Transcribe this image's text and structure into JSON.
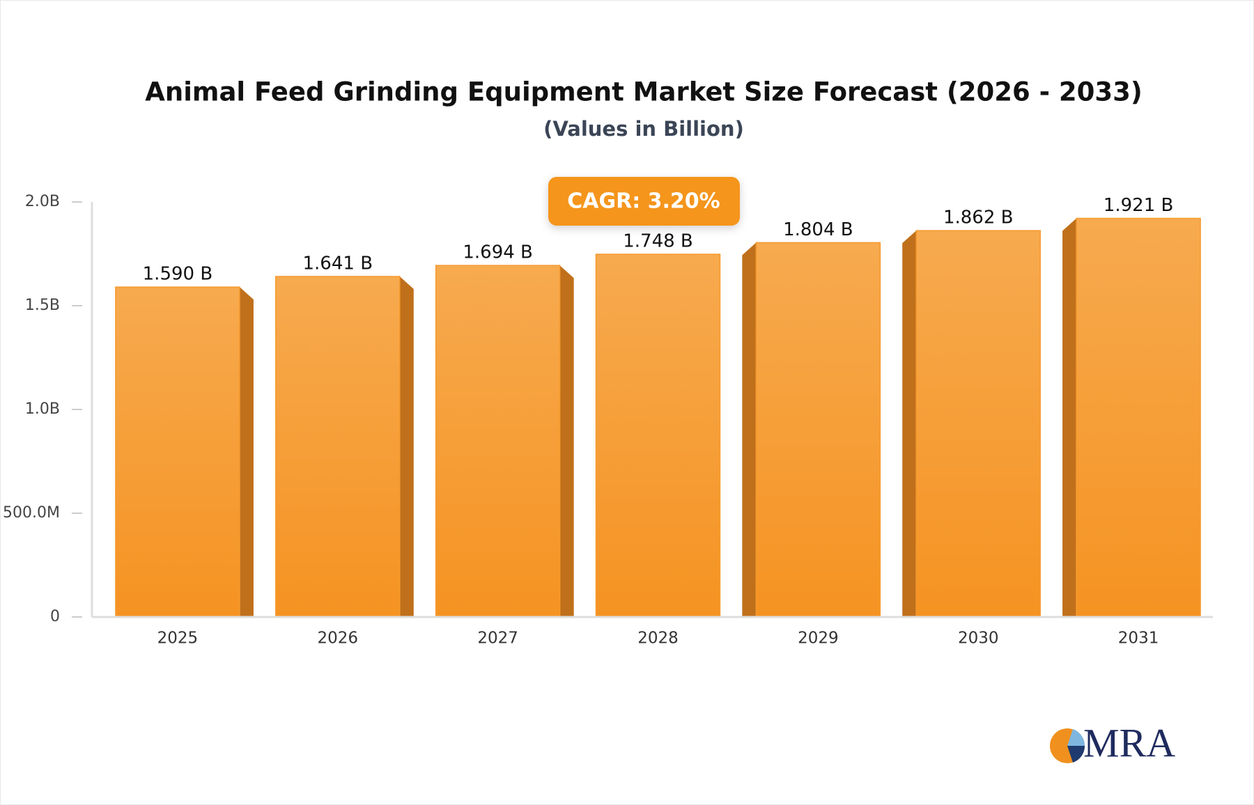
{
  "chart_data": {
    "type": "bar",
    "title": "Animal Feed Grinding Equipment Market Size Forecast (2026 - 2033)",
    "subtitle": "(Values in Billion)",
    "annotation": "CAGR: 3.20%",
    "logo": "MRA",
    "categories": [
      "2025",
      "2026",
      "2027",
      "2028",
      "2029",
      "2030",
      "2031"
    ],
    "values": [
      1.59,
      1.641,
      1.694,
      1.748,
      1.804,
      1.862,
      1.921
    ],
    "value_labels": [
      "1.590 B",
      "1.641 B",
      "1.694 B",
      "1.748 B",
      "1.804 B",
      "1.862 B",
      "1.921 B"
    ],
    "color": "#f59a2e",
    "ylim": [
      0,
      2
    ],
    "yticks": [
      0,
      {
        "value": 0.5,
        "label": "500.0M"
      },
      {
        "value": 1,
        "label": "1.0B"
      },
      {
        "value": 1.5,
        "label": "1.5B"
      },
      {
        "value": 2,
        "label": "2.0B"
      }
    ]
  }
}
